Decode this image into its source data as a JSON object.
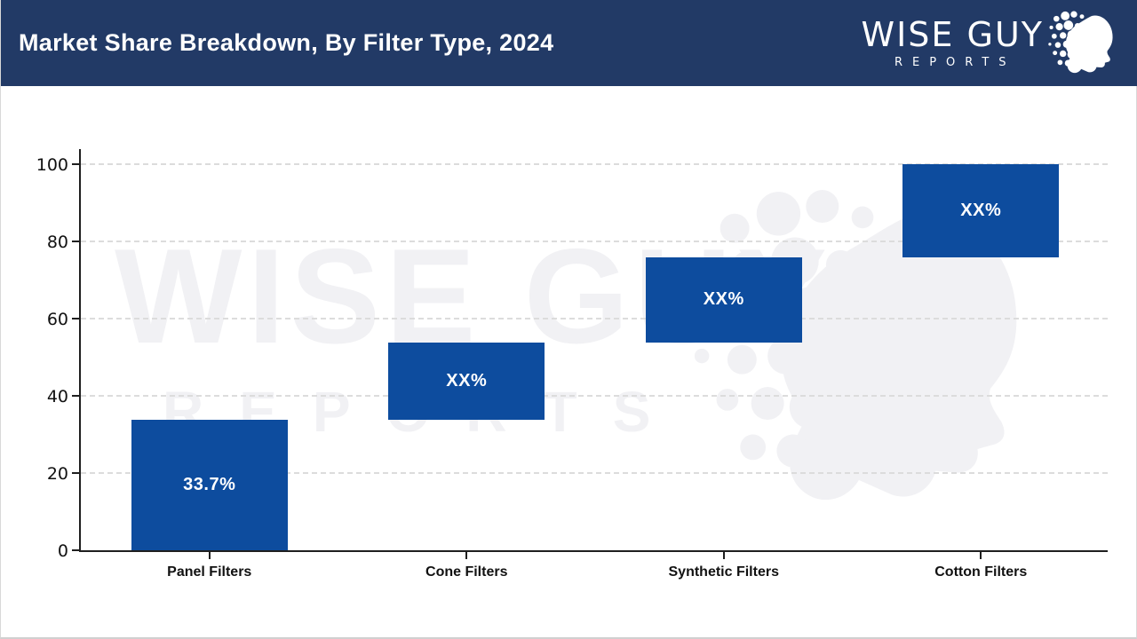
{
  "header": {
    "title": "Market Share Breakdown, By Filter Type, 2024",
    "logo": {
      "line1": "WISE GUY",
      "line2": "REPORTS"
    }
  },
  "watermark": {
    "line1": "WISE GUY",
    "line2": "REPORTS"
  },
  "colors": {
    "header_bg": "#223a66",
    "bar": "#0d4c9e",
    "grid": "#dcdcdc",
    "axis": "#1f1f1f",
    "bar_label": "#ffffff",
    "watermark": "#f1f1f4"
  },
  "chart_data": {
    "type": "bar",
    "variant": "waterfall",
    "title": "Market Share Breakdown, By Filter Type, 2024",
    "xlabel": "",
    "ylabel": "",
    "ylim": [
      0,
      100
    ],
    "yticks": [
      0,
      20,
      40,
      60,
      80,
      100
    ],
    "grid": "horizontal-dashed",
    "legend": "none",
    "bar_color": "#0d4c9e",
    "categories": [
      "Panel Filters",
      "Cone Filters",
      "Synthetic Filters",
      "Cotton Filters"
    ],
    "segments": [
      {
        "category": "Panel Filters",
        "start": 0,
        "end": 33.7,
        "label": "33.7%"
      },
      {
        "category": "Cone Filters",
        "start": 33.7,
        "end": 53.8,
        "label": "XX%"
      },
      {
        "category": "Synthetic Filters",
        "start": 53.8,
        "end": 75.9,
        "label": "XX%"
      },
      {
        "category": "Cotton Filters",
        "start": 75.9,
        "end": 100,
        "label": "XX%"
      }
    ]
  }
}
